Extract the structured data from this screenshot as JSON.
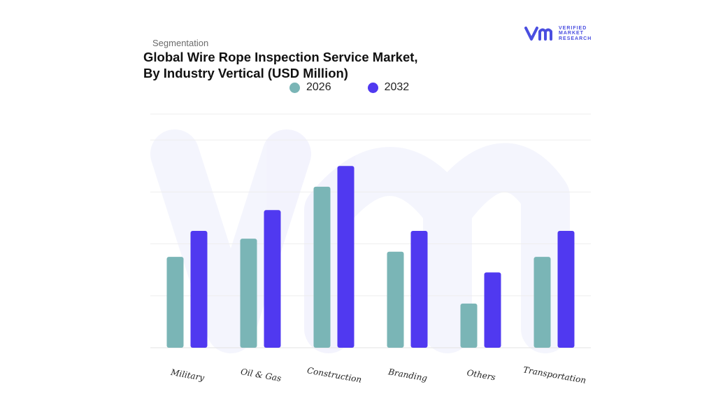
{
  "header": {
    "segment_label": "Segmentation",
    "title_line1": "Global Wire Rope Inspection Service Market,",
    "title_line2": "By Industry Vertical (USD Million)"
  },
  "brand": {
    "logo_text_line1": "VERIFIED",
    "logo_text_line2": "MARKET",
    "logo_text_line3": "RESEARCH",
    "color": "#4a4ee0"
  },
  "chart_data": {
    "type": "bar",
    "categories": [
      "Military",
      "Oil & Gas",
      "Construction",
      "Branding",
      "Others",
      "Transportation"
    ],
    "series": [
      {
        "name": "2026",
        "color": "#7ab5b6",
        "values": [
          35,
          42,
          62,
          37,
          17,
          35
        ]
      },
      {
        "name": "2032",
        "color": "#5039f0",
        "values": [
          45,
          53,
          70,
          45,
          29,
          45
        ]
      }
    ],
    "ylim": [
      0,
      90
    ],
    "grid": true,
    "legend": "top"
  }
}
